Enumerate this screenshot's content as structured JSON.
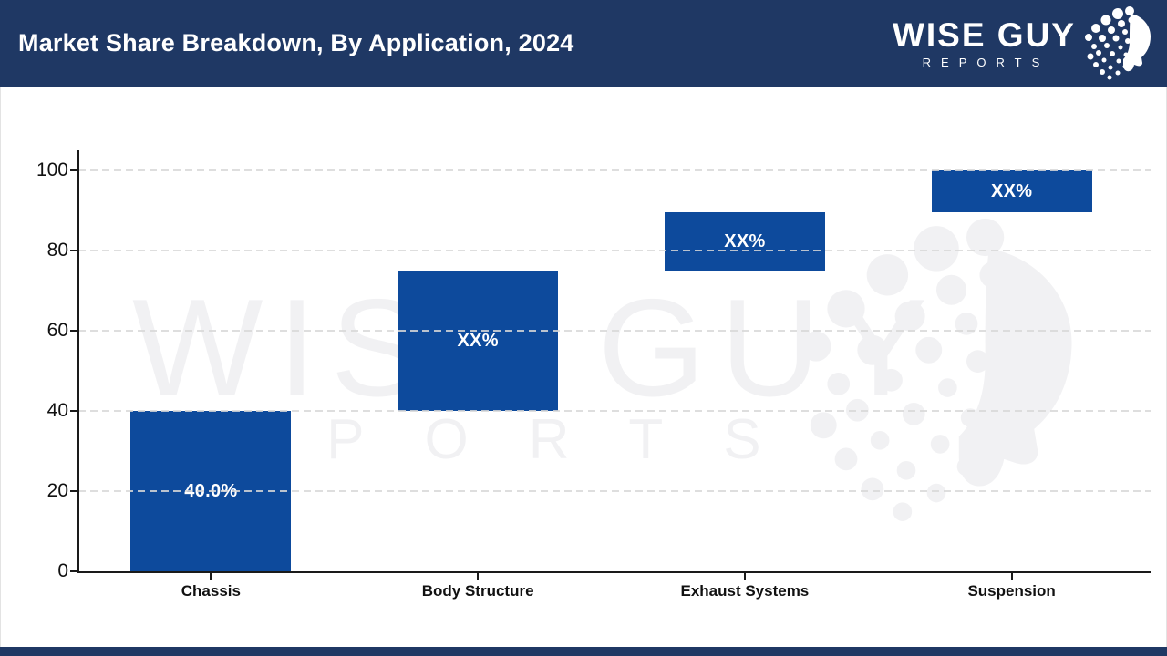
{
  "header": {
    "title": "Market Share Breakdown, By Application, 2024",
    "logo": {
      "primary": "WISE GUY",
      "secondary": "REPORTS"
    }
  },
  "watermark": {
    "line1": "WISE GUY",
    "line2": "REPORTS"
  },
  "chart_data": {
    "type": "bar",
    "subtype": "waterfall",
    "title": "Market Share Breakdown, By Application, 2024",
    "categories": [
      "Chassis",
      "Body Structure",
      "Exhaust Systems",
      "Suspension"
    ],
    "segments": [
      {
        "category": "Chassis",
        "start": 0,
        "end": 40,
        "label": "40.0%"
      },
      {
        "category": "Body Structure",
        "start": 40,
        "end": 75,
        "label": "XX%"
      },
      {
        "category": "Exhaust Systems",
        "start": 75,
        "end": 89.5,
        "label": "XX%"
      },
      {
        "category": "Suspension",
        "start": 89.5,
        "end": 100,
        "label": "XX%"
      }
    ],
    "ylim": [
      0,
      100
    ],
    "yticks": [
      0,
      20,
      40,
      60,
      80,
      100
    ],
    "grid": "horizontal-dashed",
    "legend": "none",
    "bar_color": "#0d4a9c",
    "bar_label_color": "#ffffff",
    "accent_navy": "#1f3864",
    "gridline_color": "#d8d8d8"
  }
}
